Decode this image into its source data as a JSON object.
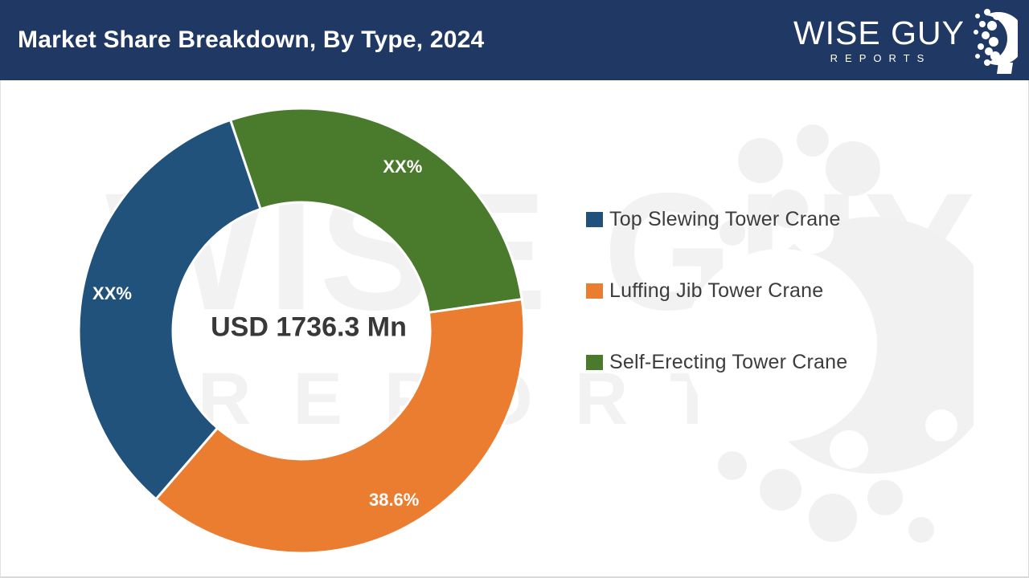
{
  "header": {
    "title": "Market Share Breakdown, By Type, 2024",
    "logo": {
      "brand": "WISE GUY",
      "sub": "REPORTS"
    }
  },
  "chart_data": {
    "type": "pie",
    "donut": true,
    "title": "Market Share Breakdown, By Type, 2024",
    "center_label": "USD 1736.3 Mn",
    "legend_position": "right",
    "start_angle_deg_clockwise_from_top": -18.6,
    "segments": [
      {
        "name": "Top Slewing Tower Crane",
        "label": "XX%",
        "share_pct_est": 33.5,
        "color": "#21527B"
      },
      {
        "name": "Luffing Jib Tower Crane",
        "label": "38.6%",
        "share_pct_est": 38.6,
        "color": "#EA7D2F"
      },
      {
        "name": "Self-Erecting Tower Crane",
        "label": "XX%",
        "share_pct_est": 27.9,
        "color": "#4A7A2C"
      }
    ]
  },
  "watermark": {
    "line1": "WISE GUY",
    "line2": "REPORTS"
  },
  "colors": {
    "header_bg": "#203864",
    "text_dark": "#3C3C3C",
    "watermark_gray": "#F2F2F2",
    "border_gray": "#D9D9D9"
  }
}
